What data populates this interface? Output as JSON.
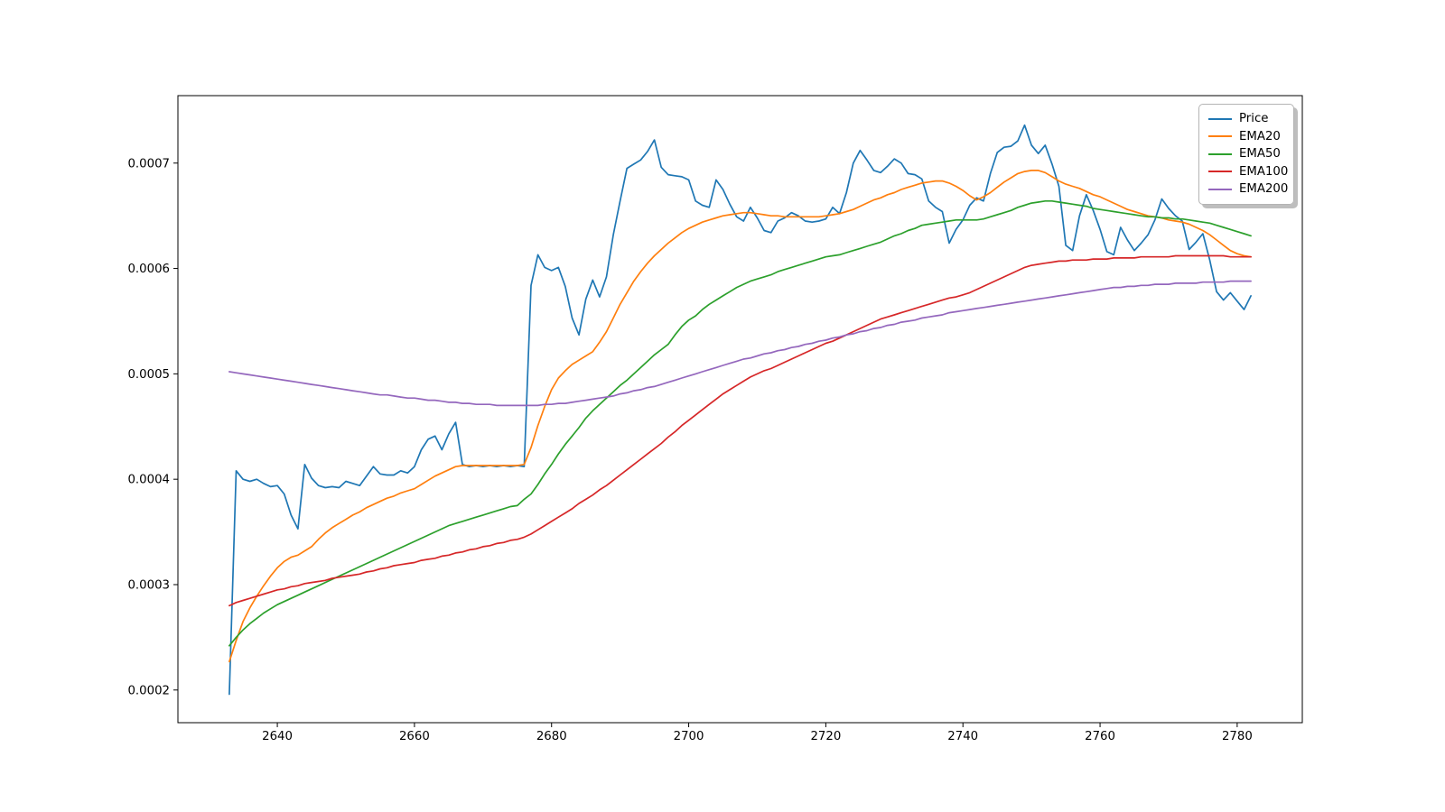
{
  "chart_data": {
    "type": "line",
    "title": "",
    "xlabel": "",
    "ylabel": "",
    "grid": false,
    "legend_position": "upper right",
    "x_start": 2633,
    "x_step": 1,
    "x_end": 2782,
    "xlim": [
      2625.5,
      2789.5
    ],
    "ylim": [
      0.000169,
      0.000764
    ],
    "x_ticks": [
      2640,
      2660,
      2680,
      2700,
      2720,
      2740,
      2760,
      2780
    ],
    "x_tick_labels": [
      "2640",
      "2660",
      "2680",
      "2700",
      "2720",
      "2740",
      "2760",
      "2780"
    ],
    "y_ticks": [
      0.0002,
      0.0003,
      0.0004,
      0.0005,
      0.0006,
      0.0007
    ],
    "y_tick_labels": [
      "0.0002",
      "0.0003",
      "0.0004",
      "0.0005",
      "0.0006",
      "0.0007"
    ],
    "series": [
      {
        "name": "Price",
        "color": "#1f77b4",
        "values": [
          0.000196,
          0.000408,
          0.0004,
          0.000398,
          0.0004,
          0.000396,
          0.000393,
          0.000394,
          0.000386,
          0.000366,
          0.000353,
          0.000414,
          0.000401,
          0.000394,
          0.000392,
          0.000393,
          0.000392,
          0.000398,
          0.000396,
          0.000394,
          0.000403,
          0.000412,
          0.000405,
          0.000404,
          0.000404,
          0.000408,
          0.000406,
          0.000412,
          0.000428,
          0.000438,
          0.000441,
          0.000428,
          0.000443,
          0.000454,
          0.000414,
          0.000412,
          0.000413,
          0.000412,
          0.000413,
          0.000412,
          0.000413,
          0.000412,
          0.000413,
          0.000412,
          0.000584,
          0.000613,
          0.000601,
          0.000598,
          0.000601,
          0.000583,
          0.000553,
          0.000537,
          0.000571,
          0.000589,
          0.000573,
          0.000592,
          0.000632,
          0.000664,
          0.000695,
          0.000699,
          0.000703,
          0.000711,
          0.000722,
          0.000696,
          0.000689,
          0.000688,
          0.000687,
          0.000684,
          0.000664,
          0.00066,
          0.000658,
          0.000684,
          0.000675,
          0.000661,
          0.000649,
          0.000645,
          0.000658,
          0.000648,
          0.000636,
          0.000634,
          0.000645,
          0.000648,
          0.000653,
          0.00065,
          0.000645,
          0.000644,
          0.000645,
          0.000647,
          0.000658,
          0.000652,
          0.000672,
          0.0007,
          0.000712,
          0.000703,
          0.000693,
          0.000691,
          0.000697,
          0.000704,
          0.0007,
          0.00069,
          0.000689,
          0.000685,
          0.000664,
          0.000658,
          0.000654,
          0.000624,
          0.000637,
          0.000646,
          0.00066,
          0.000667,
          0.000664,
          0.00069,
          0.00071,
          0.000715,
          0.000716,
          0.000721,
          0.000736,
          0.000717,
          0.000709,
          0.000717,
          0.000699,
          0.000678,
          0.000622,
          0.000617,
          0.00065,
          0.00067,
          0.000655,
          0.000637,
          0.000616,
          0.000613,
          0.000639,
          0.000627,
          0.000617,
          0.000624,
          0.000632,
          0.000646,
          0.000666,
          0.000657,
          0.00065,
          0.000645,
          0.000618,
          0.000625,
          0.000633,
          0.000608,
          0.000578,
          0.00057,
          0.000577,
          0.000569,
          0.000561,
          0.000574
        ]
      },
      {
        "name": "EMA20",
        "color": "#ff7f0e",
        "values": [
          0.000227,
          0.000247,
          0.000265,
          0.000278,
          0.000289,
          0.000299,
          0.000308,
          0.000316,
          0.000322,
          0.000326,
          0.000328,
          0.000332,
          0.000336,
          0.000343,
          0.000349,
          0.000354,
          0.000358,
          0.000362,
          0.000366,
          0.000369,
          0.000373,
          0.000376,
          0.000379,
          0.000382,
          0.000384,
          0.000387,
          0.000389,
          0.000391,
          0.000395,
          0.000399,
          0.000403,
          0.000406,
          0.000409,
          0.000412,
          0.000413,
          0.000413,
          0.000413,
          0.000413,
          0.000413,
          0.000413,
          0.000413,
          0.000413,
          0.000413,
          0.000414,
          0.00043,
          0.000451,
          0.000469,
          0.000485,
          0.000496,
          0.000503,
          0.000509,
          0.000513,
          0.000517,
          0.000521,
          0.00053,
          0.00054,
          0.000553,
          0.000566,
          0.000577,
          0.000588,
          0.000597,
          0.000605,
          0.000612,
          0.000618,
          0.000624,
          0.000629,
          0.000634,
          0.000638,
          0.000641,
          0.000644,
          0.000646,
          0.000648,
          0.00065,
          0.000651,
          0.000652,
          0.000653,
          0.000653,
          0.000652,
          0.000651,
          0.00065,
          0.00065,
          0.000649,
          0.000649,
          0.000649,
          0.000649,
          0.000649,
          0.000649,
          0.00065,
          0.000651,
          0.000652,
          0.000654,
          0.000656,
          0.000659,
          0.000662,
          0.000665,
          0.000667,
          0.00067,
          0.000672,
          0.000675,
          0.000677,
          0.000679,
          0.000681,
          0.000682,
          0.000683,
          0.000683,
          0.000681,
          0.000678,
          0.000674,
          0.000669,
          0.000665,
          0.000668,
          0.000672,
          0.000677,
          0.000682,
          0.000686,
          0.00069,
          0.000692,
          0.000693,
          0.000693,
          0.000691,
          0.000687,
          0.000683,
          0.00068,
          0.000678,
          0.000676,
          0.000673,
          0.00067,
          0.000668,
          0.000665,
          0.000662,
          0.000659,
          0.000656,
          0.000654,
          0.000652,
          0.00065,
          0.000649,
          0.000648,
          0.000646,
          0.000645,
          0.000644,
          0.000642,
          0.000639,
          0.000636,
          0.000632,
          0.000627,
          0.000622,
          0.000617,
          0.000614,
          0.000612,
          0.000611
        ]
      },
      {
        "name": "EMA50",
        "color": "#2ca02c",
        "values": [
          0.000242,
          0.00025,
          0.000257,
          0.000263,
          0.000268,
          0.000273,
          0.000277,
          0.000281,
          0.000284,
          0.000287,
          0.00029,
          0.000293,
          0.000296,
          0.000299,
          0.000302,
          0.000305,
          0.000308,
          0.000311,
          0.000314,
          0.000317,
          0.00032,
          0.000323,
          0.000326,
          0.000329,
          0.000332,
          0.000335,
          0.000338,
          0.000341,
          0.000344,
          0.000347,
          0.00035,
          0.000353,
          0.000356,
          0.000358,
          0.00036,
          0.000362,
          0.000364,
          0.000366,
          0.000368,
          0.00037,
          0.000372,
          0.000374,
          0.000375,
          0.000381,
          0.000386,
          0.000395,
          0.000405,
          0.000414,
          0.000424,
          0.000433,
          0.000441,
          0.000449,
          0.000458,
          0.000465,
          0.000471,
          0.000477,
          0.000483,
          0.000489,
          0.000494,
          0.0005,
          0.000506,
          0.000512,
          0.000518,
          0.000523,
          0.000528,
          0.000537,
          0.000545,
          0.000551,
          0.000555,
          0.000561,
          0.000566,
          0.00057,
          0.000574,
          0.000578,
          0.000582,
          0.000585,
          0.000588,
          0.00059,
          0.000592,
          0.000594,
          0.000597,
          0.000599,
          0.000601,
          0.000603,
          0.000605,
          0.000607,
          0.000609,
          0.000611,
          0.000612,
          0.000613,
          0.000615,
          0.000617,
          0.000619,
          0.000621,
          0.000623,
          0.000625,
          0.000628,
          0.000631,
          0.000633,
          0.000636,
          0.000638,
          0.000641,
          0.000642,
          0.000643,
          0.000644,
          0.000645,
          0.000646,
          0.000646,
          0.000646,
          0.000646,
          0.000647,
          0.000649,
          0.000651,
          0.000653,
          0.000655,
          0.000658,
          0.00066,
          0.000662,
          0.000663,
          0.000664,
          0.000664,
          0.000663,
          0.000662,
          0.000661,
          0.00066,
          0.000659,
          0.000657,
          0.000656,
          0.000655,
          0.000654,
          0.000653,
          0.000652,
          0.000651,
          0.00065,
          0.000649,
          0.000649,
          0.000648,
          0.000648,
          0.000647,
          0.000647,
          0.000646,
          0.000645,
          0.000644,
          0.000643,
          0.000641,
          0.000639,
          0.000637,
          0.000635,
          0.000633,
          0.000631
        ]
      },
      {
        "name": "EMA100",
        "color": "#d62728",
        "values": [
          0.00028,
          0.000283,
          0.000285,
          0.000287,
          0.000289,
          0.000291,
          0.000293,
          0.000295,
          0.000296,
          0.000298,
          0.000299,
          0.000301,
          0.000302,
          0.000303,
          0.000304,
          0.000306,
          0.000307,
          0.000308,
          0.000309,
          0.00031,
          0.000312,
          0.000313,
          0.000315,
          0.000316,
          0.000318,
          0.000319,
          0.00032,
          0.000321,
          0.000323,
          0.000324,
          0.000325,
          0.000327,
          0.000328,
          0.00033,
          0.000331,
          0.000333,
          0.000334,
          0.000336,
          0.000337,
          0.000339,
          0.00034,
          0.000342,
          0.000343,
          0.000345,
          0.000348,
          0.000352,
          0.000356,
          0.00036,
          0.000364,
          0.000368,
          0.000372,
          0.000377,
          0.000381,
          0.000385,
          0.00039,
          0.000394,
          0.000399,
          0.000404,
          0.000409,
          0.000414,
          0.000419,
          0.000424,
          0.000429,
          0.000434,
          0.00044,
          0.000445,
          0.000451,
          0.000456,
          0.000461,
          0.000466,
          0.000471,
          0.000476,
          0.000481,
          0.000485,
          0.000489,
          0.000493,
          0.000497,
          0.0005,
          0.000503,
          0.000505,
          0.000508,
          0.000511,
          0.000514,
          0.000517,
          0.00052,
          0.000523,
          0.000526,
          0.000529,
          0.000531,
          0.000534,
          0.000537,
          0.00054,
          0.000543,
          0.000546,
          0.000549,
          0.000552,
          0.000554,
          0.000556,
          0.000558,
          0.00056,
          0.000562,
          0.000564,
          0.000566,
          0.000568,
          0.00057,
          0.000572,
          0.000573,
          0.000575,
          0.000577,
          0.00058,
          0.000583,
          0.000586,
          0.000589,
          0.000592,
          0.000595,
          0.000598,
          0.000601,
          0.000603,
          0.000604,
          0.000605,
          0.000606,
          0.000607,
          0.000607,
          0.000608,
          0.000608,
          0.000608,
          0.000609,
          0.000609,
          0.000609,
          0.00061,
          0.00061,
          0.00061,
          0.00061,
          0.000611,
          0.000611,
          0.000611,
          0.000611,
          0.000611,
          0.000612,
          0.000612,
          0.000612,
          0.000612,
          0.000612,
          0.000612,
          0.000612,
          0.000612,
          0.000611,
          0.000611,
          0.000611,
          0.000611
        ]
      },
      {
        "name": "EMA200",
        "color": "#9467bd",
        "values": [
          0.000502,
          0.000501,
          0.0005,
          0.000499,
          0.000498,
          0.000497,
          0.000496,
          0.000495,
          0.000494,
          0.000493,
          0.000492,
          0.000491,
          0.00049,
          0.000489,
          0.000488,
          0.000487,
          0.000486,
          0.000485,
          0.000484,
          0.000483,
          0.000482,
          0.000481,
          0.00048,
          0.00048,
          0.000479,
          0.000478,
          0.000477,
          0.000477,
          0.000476,
          0.000475,
          0.000475,
          0.000474,
          0.000473,
          0.000473,
          0.000472,
          0.000472,
          0.000471,
          0.000471,
          0.000471,
          0.00047,
          0.00047,
          0.00047,
          0.00047,
          0.00047,
          0.00047,
          0.00047,
          0.000471,
          0.000471,
          0.000472,
          0.000472,
          0.000473,
          0.000474,
          0.000475,
          0.000476,
          0.000477,
          0.000478,
          0.000479,
          0.000481,
          0.000482,
          0.000484,
          0.000485,
          0.000487,
          0.000488,
          0.00049,
          0.000492,
          0.000494,
          0.000496,
          0.000498,
          0.0005,
          0.000502,
          0.000504,
          0.000506,
          0.000508,
          0.00051,
          0.000512,
          0.000514,
          0.000515,
          0.000517,
          0.000519,
          0.00052,
          0.000522,
          0.000523,
          0.000525,
          0.000526,
          0.000528,
          0.000529,
          0.000531,
          0.000532,
          0.000534,
          0.000535,
          0.000537,
          0.000538,
          0.00054,
          0.000541,
          0.000543,
          0.000544,
          0.000546,
          0.000547,
          0.000549,
          0.00055,
          0.000551,
          0.000553,
          0.000554,
          0.000555,
          0.000556,
          0.000558,
          0.000559,
          0.00056,
          0.000561,
          0.000562,
          0.000563,
          0.000564,
          0.000565,
          0.000566,
          0.000567,
          0.000568,
          0.000569,
          0.00057,
          0.000571,
          0.000572,
          0.000573,
          0.000574,
          0.000575,
          0.000576,
          0.000577,
          0.000578,
          0.000579,
          0.00058,
          0.000581,
          0.000582,
          0.000582,
          0.000583,
          0.000583,
          0.000584,
          0.000584,
          0.000585,
          0.000585,
          0.000585,
          0.000586,
          0.000586,
          0.000586,
          0.000586,
          0.000587,
          0.000587,
          0.000587,
          0.000587,
          0.000588,
          0.000588,
          0.000588,
          0.000588
        ]
      }
    ]
  }
}
